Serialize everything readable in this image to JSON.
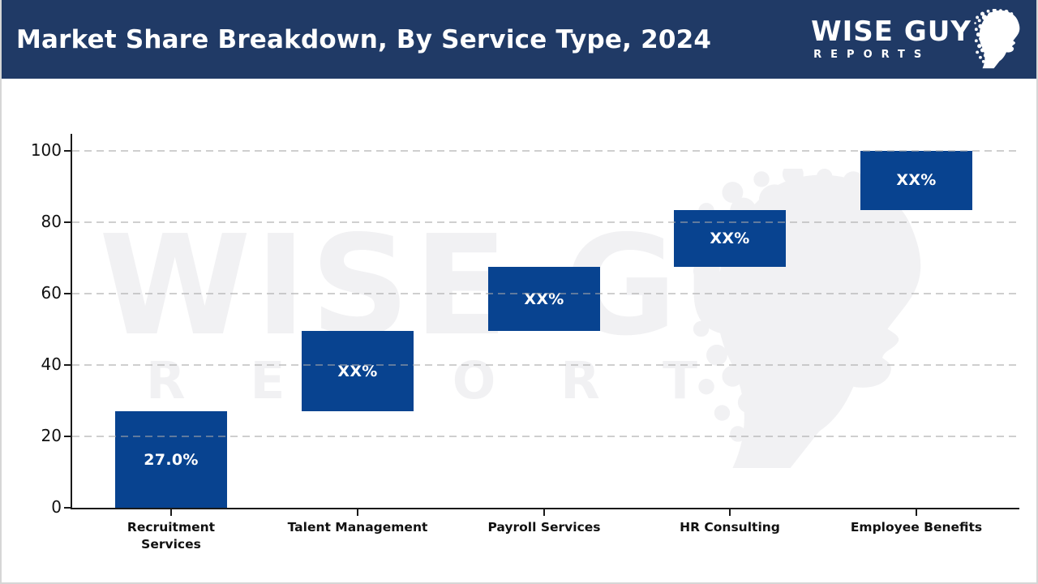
{
  "header": {
    "title": "Market Share Breakdown, By Service Type, 2024",
    "logo": {
      "name": "WISE GUY",
      "sub": "REPORTS"
    }
  },
  "watermark": {
    "line1": "WISE GUY",
    "line2": "REPORTS"
  },
  "colors": {
    "header_bg": "#203a66",
    "bar": "#084390",
    "bar_label": "#ffffff",
    "axis": "#1a1a1a",
    "gridline": "#d2d2d2",
    "watermark": "#f1f1f3",
    "frame_border": "#d6d6d6",
    "title_text": "#ffffff"
  },
  "chart_data": {
    "type": "bar",
    "subtype": "waterfall",
    "title": "Market Share Breakdown, By Service Type, 2024",
    "categories": [
      "Recruitment\nServices",
      "Talent Management",
      "Payroll Services",
      "HR Consulting",
      "Employee Benefits"
    ],
    "segments": [
      {
        "category": "Recruitment Services",
        "start": 0,
        "end": 27,
        "value": 27.0,
        "label": "27.0%"
      },
      {
        "category": "Talent Management",
        "start": 27,
        "end": 49.5,
        "value": 22.5,
        "label": "XX%"
      },
      {
        "category": "Payroll Services",
        "start": 49.5,
        "end": 67.5,
        "value": 18.0,
        "label": "XX%"
      },
      {
        "category": "HR Consulting",
        "start": 67.5,
        "end": 83.5,
        "value": 16.0,
        "label": "XX%"
      },
      {
        "category": "Employee Benefits",
        "start": 83.5,
        "end": 100,
        "value": 16.5,
        "label": "XX%"
      }
    ],
    "yticks": [
      0,
      20,
      40,
      60,
      80,
      100
    ],
    "ylim": [
      0,
      105
    ],
    "grid": {
      "axis": "y",
      "style": "dashed",
      "drawn_over_bars": true
    },
    "legend": "none"
  }
}
